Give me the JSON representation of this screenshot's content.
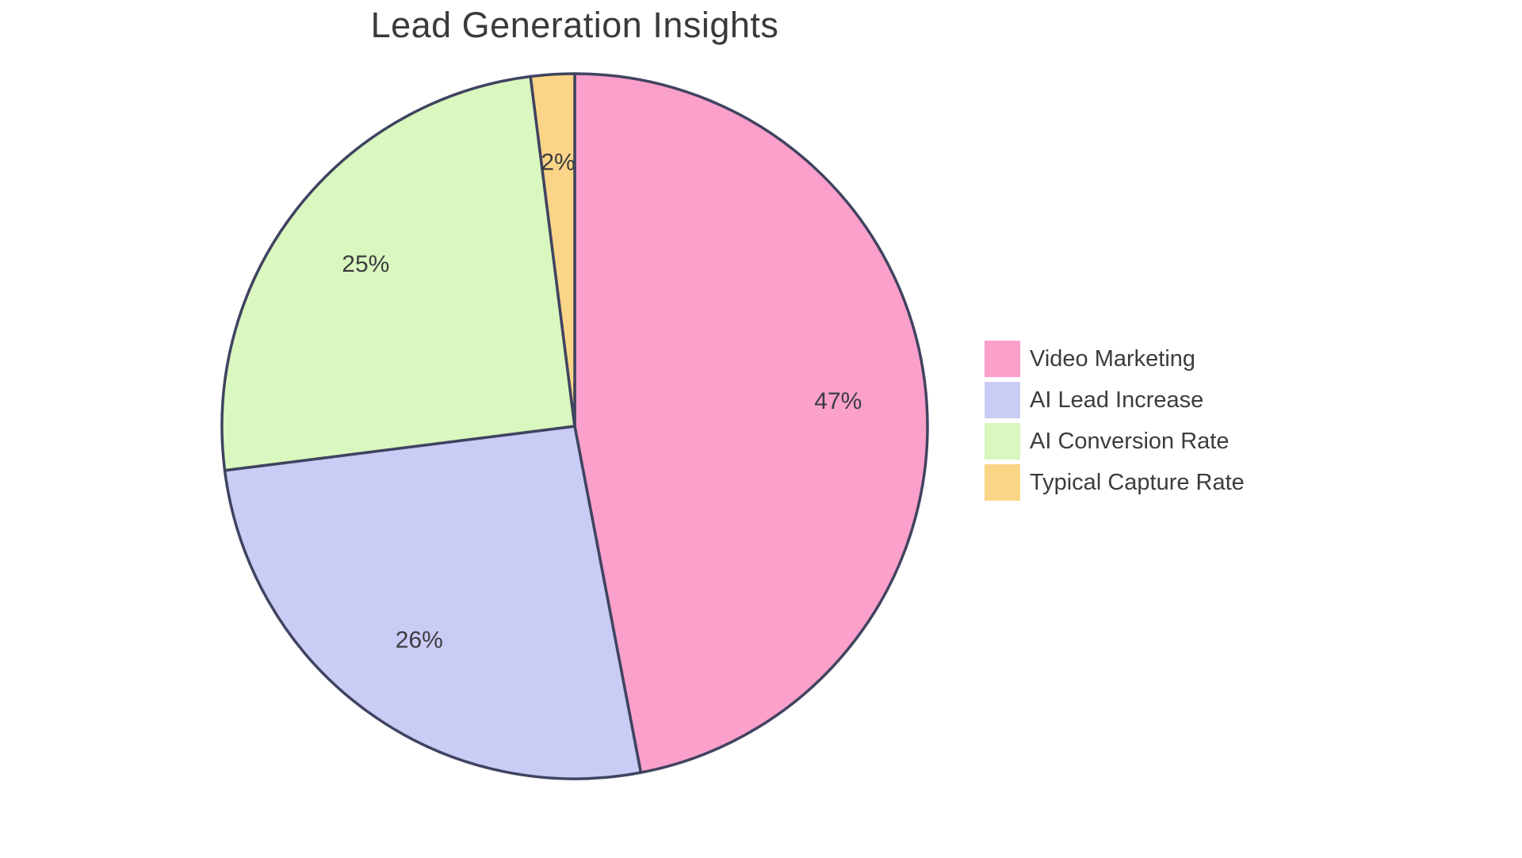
{
  "chart_data": {
    "type": "pie",
    "title": "Lead Generation Insights",
    "categories": [
      "Video Marketing",
      "AI Lead Increase",
      "AI Conversion Rate",
      "Typical Capture Rate"
    ],
    "values": [
      47,
      26,
      25,
      2
    ],
    "slice_labels": [
      "47%",
      "26%",
      "25%",
      "2%"
    ],
    "colors": [
      "#FAA0CB",
      "#C9CCF5",
      "#D9F7BE",
      "#FBD587"
    ],
    "stroke_color": "#404360",
    "stroke_width": 3.5,
    "label_color": "#3C3C40",
    "label_radius_fraction": 0.75,
    "start_angle": "12 o'clock",
    "direction": "clockwise",
    "legend_position": "right",
    "background_color": "#FFFFFF"
  }
}
